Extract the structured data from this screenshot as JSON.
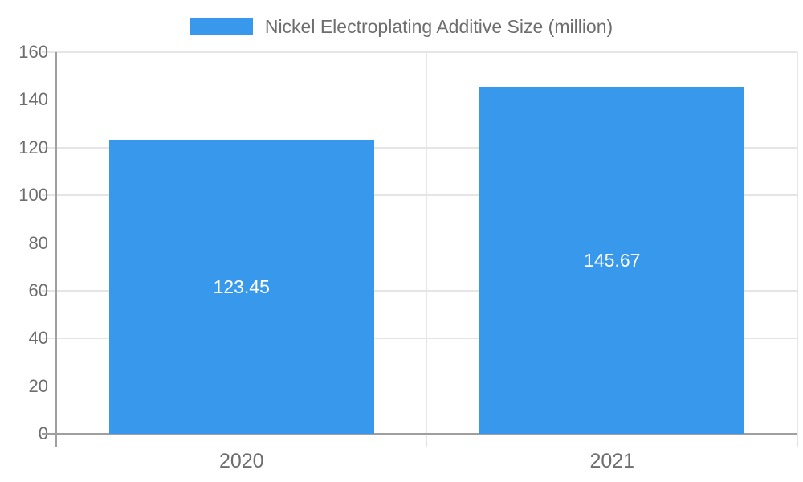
{
  "chart_data": {
    "type": "bar",
    "title": "Nickel Electroplating Additive Size (million)",
    "categories": [
      "2020",
      "2021"
    ],
    "series": [
      {
        "name": "Nickel Electroplating Additive Size (million)",
        "values": [
          123.45,
          145.67
        ]
      }
    ],
    "value_labels": [
      "123.45",
      "145.67"
    ],
    "xlabel": "",
    "ylabel": "",
    "ylim": [
      0,
      160
    ],
    "ytick_step": 20,
    "yticks": [
      0,
      20,
      40,
      60,
      80,
      100,
      120,
      140,
      160
    ],
    "grid": true,
    "legend_position": "top",
    "colors": {
      "bar": "#3898ec",
      "value_label": "#ffffff",
      "axis_text": "#6e6e6e",
      "axis_line": "#9f9f9f",
      "gridline": "#e5e5e5",
      "background": "#ffffff"
    }
  }
}
